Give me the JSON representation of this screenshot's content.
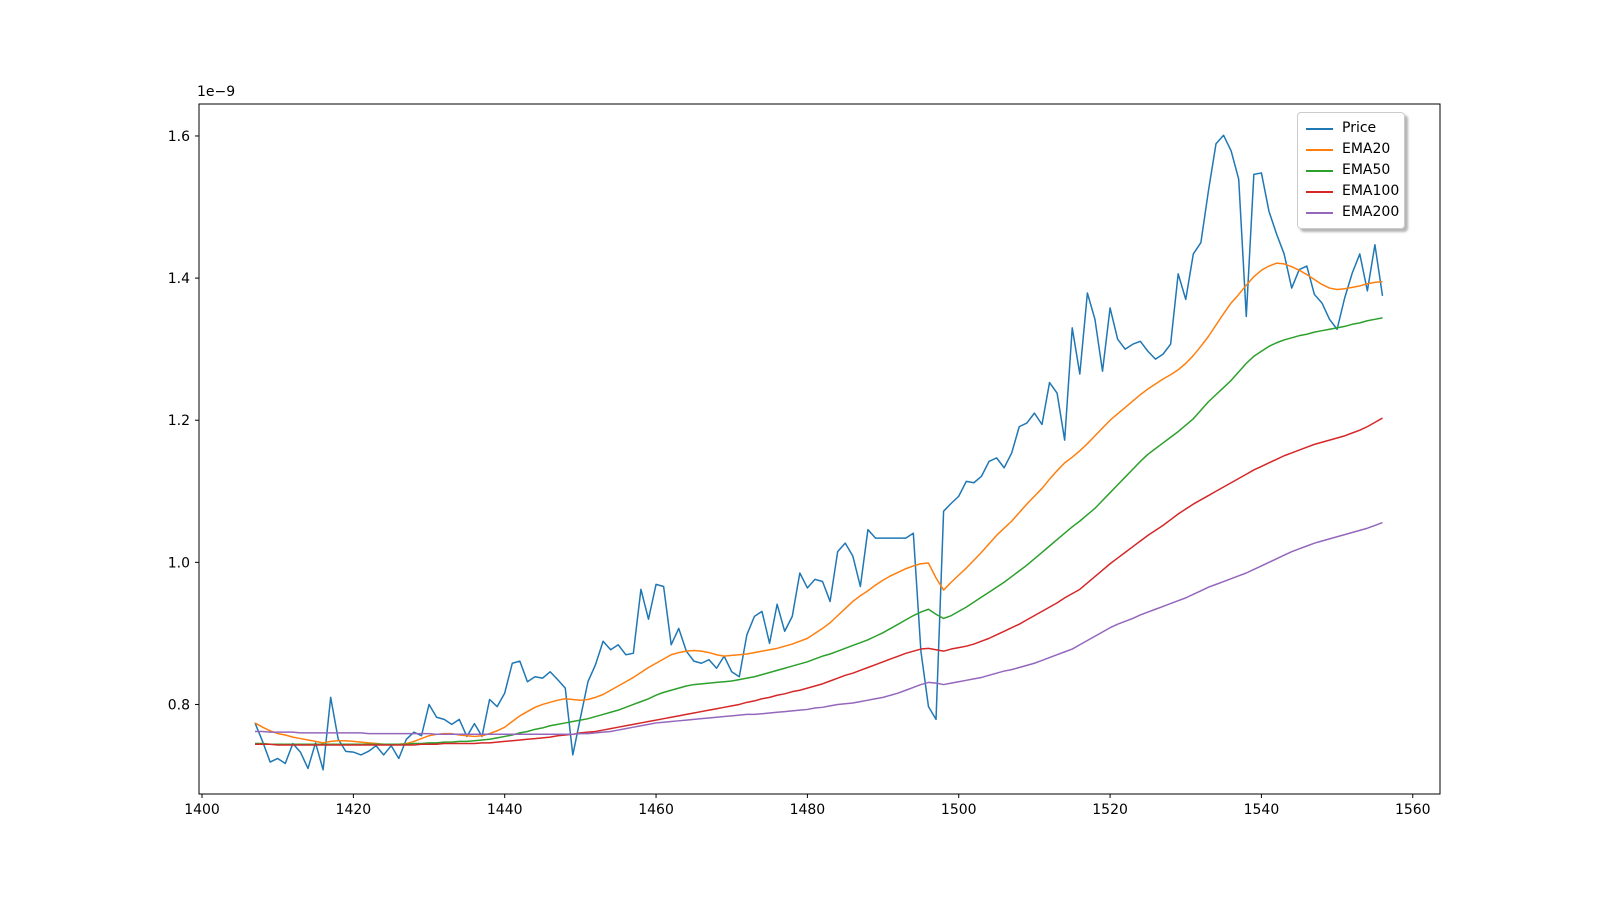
{
  "figure": {
    "background_color": "#ffffff",
    "offset_text": "1e−9"
  },
  "chart_data": {
    "type": "line",
    "title": "",
    "xlabel": "",
    "ylabel": "",
    "y_unit_multiplier": "1e-9",
    "grid": false,
    "legend_position": "upper right",
    "xlim": [
      1399.6,
      1563.6
    ],
    "ylim": [
      0.674,
      1.645
    ],
    "xticks": [
      1400,
      1420,
      1440,
      1460,
      1480,
      1500,
      1520,
      1540,
      1560
    ],
    "yticks": [
      0.8,
      1.0,
      1.2,
      1.4,
      1.6
    ],
    "x": [
      1407,
      1408,
      1409,
      1410,
      1411,
      1412,
      1413,
      1414,
      1415,
      1416,
      1417,
      1418,
      1419,
      1420,
      1421,
      1422,
      1423,
      1424,
      1425,
      1426,
      1427,
      1428,
      1429,
      1430,
      1431,
      1432,
      1433,
      1434,
      1435,
      1436,
      1437,
      1438,
      1439,
      1440,
      1441,
      1442,
      1443,
      1444,
      1445,
      1446,
      1447,
      1448,
      1449,
      1450,
      1451,
      1452,
      1453,
      1454,
      1455,
      1456,
      1457,
      1458,
      1459,
      1460,
      1461,
      1462,
      1463,
      1464,
      1465,
      1466,
      1467,
      1468,
      1469,
      1470,
      1471,
      1472,
      1473,
      1474,
      1475,
      1476,
      1477,
      1478,
      1479,
      1480,
      1481,
      1482,
      1483,
      1484,
      1485,
      1486,
      1487,
      1488,
      1489,
      1490,
      1491,
      1492,
      1493,
      1494,
      1495,
      1496,
      1497,
      1498,
      1499,
      1500,
      1501,
      1502,
      1503,
      1504,
      1505,
      1506,
      1507,
      1508,
      1509,
      1510,
      1511,
      1512,
      1513,
      1514,
      1515,
      1516,
      1517,
      1518,
      1519,
      1520,
      1521,
      1522,
      1523,
      1524,
      1525,
      1526,
      1527,
      1528,
      1529,
      1530,
      1531,
      1532,
      1533,
      1534,
      1535,
      1536,
      1537,
      1538,
      1539,
      1540,
      1541,
      1542,
      1543,
      1544,
      1545,
      1546,
      1547,
      1548,
      1549,
      1550,
      1551,
      1552,
      1553,
      1554,
      1555,
      1556
    ],
    "series": [
      {
        "name": "Price",
        "color": "#1f77b4",
        "values": [
          0.774,
          0.748,
          0.719,
          0.724,
          0.717,
          0.745,
          0.733,
          0.71,
          0.746,
          0.708,
          0.81,
          0.751,
          0.734,
          0.733,
          0.729,
          0.734,
          0.742,
          0.729,
          0.742,
          0.724,
          0.751,
          0.761,
          0.756,
          0.8,
          0.782,
          0.779,
          0.772,
          0.779,
          0.755,
          0.773,
          0.755,
          0.807,
          0.797,
          0.816,
          0.858,
          0.861,
          0.832,
          0.839,
          0.837,
          0.846,
          0.835,
          0.823,
          0.729,
          0.781,
          0.832,
          0.856,
          0.889,
          0.877,
          0.884,
          0.87,
          0.872,
          0.962,
          0.92,
          0.969,
          0.966,
          0.884,
          0.907,
          0.875,
          0.861,
          0.858,
          0.863,
          0.851,
          0.868,
          0.846,
          0.839,
          0.898,
          0.924,
          0.931,
          0.886,
          0.941,
          0.903,
          0.924,
          0.985,
          0.964,
          0.976,
          0.973,
          0.945,
          1.015,
          1.027,
          1.009,
          0.966,
          1.046,
          1.034,
          1.034,
          1.034,
          1.034,
          1.034,
          1.041,
          0.875,
          0.797,
          0.779,
          1.072,
          1.083,
          1.093,
          1.114,
          1.112,
          1.121,
          1.142,
          1.147,
          1.133,
          1.154,
          1.191,
          1.196,
          1.21,
          1.194,
          1.253,
          1.238,
          1.172,
          1.33,
          1.265,
          1.379,
          1.342,
          1.269,
          1.358,
          1.314,
          1.3,
          1.307,
          1.311,
          1.297,
          1.286,
          1.293,
          1.307,
          1.406,
          1.37,
          1.434,
          1.45,
          1.523,
          1.589,
          1.601,
          1.579,
          1.539,
          1.346,
          1.546,
          1.548,
          1.494,
          1.462,
          1.434,
          1.386,
          1.412,
          1.417,
          1.377,
          1.365,
          1.342,
          1.328,
          1.372,
          1.407,
          1.434,
          1.382,
          1.447,
          1.375
        ]
      },
      {
        "name": "EMA20",
        "color": "#ff7f0e",
        "values": [
          0.774,
          0.768,
          0.763,
          0.759,
          0.757,
          0.754,
          0.752,
          0.75,
          0.748,
          0.746,
          0.748,
          0.749,
          0.749,
          0.748,
          0.747,
          0.746,
          0.745,
          0.744,
          0.744,
          0.744,
          0.745,
          0.748,
          0.752,
          0.756,
          0.758,
          0.759,
          0.759,
          0.757,
          0.756,
          0.755,
          0.756,
          0.759,
          0.763,
          0.768,
          0.776,
          0.784,
          0.79,
          0.796,
          0.8,
          0.803,
          0.806,
          0.808,
          0.807,
          0.806,
          0.807,
          0.81,
          0.814,
          0.82,
          0.826,
          0.832,
          0.838,
          0.845,
          0.852,
          0.858,
          0.864,
          0.87,
          0.873,
          0.875,
          0.876,
          0.875,
          0.873,
          0.87,
          0.868,
          0.869,
          0.87,
          0.871,
          0.873,
          0.875,
          0.877,
          0.879,
          0.882,
          0.885,
          0.889,
          0.893,
          0.9,
          0.907,
          0.915,
          0.925,
          0.935,
          0.945,
          0.953,
          0.96,
          0.968,
          0.975,
          0.981,
          0.986,
          0.991,
          0.995,
          0.998,
          0.999,
          0.978,
          0.961,
          0.972,
          0.982,
          0.992,
          1.003,
          1.014,
          1.026,
          1.038,
          1.048,
          1.058,
          1.07,
          1.082,
          1.093,
          1.104,
          1.117,
          1.129,
          1.14,
          1.148,
          1.157,
          1.167,
          1.178,
          1.189,
          1.2,
          1.209,
          1.218,
          1.227,
          1.236,
          1.244,
          1.251,
          1.258,
          1.264,
          1.271,
          1.28,
          1.291,
          1.304,
          1.318,
          1.334,
          1.35,
          1.365,
          1.377,
          1.39,
          1.402,
          1.411,
          1.417,
          1.421,
          1.42,
          1.416,
          1.411,
          1.405,
          1.398,
          1.391,
          1.386,
          1.384,
          1.385,
          1.387,
          1.389,
          1.392,
          1.394,
          1.395
        ]
      },
      {
        "name": "EMA50",
        "color": "#2ca02c",
        "values": [
          0.745,
          0.745,
          0.744,
          0.744,
          0.744,
          0.744,
          0.744,
          0.744,
          0.744,
          0.744,
          0.744,
          0.744,
          0.744,
          0.744,
          0.744,
          0.744,
          0.744,
          0.744,
          0.744,
          0.744,
          0.744,
          0.745,
          0.745,
          0.746,
          0.746,
          0.747,
          0.747,
          0.748,
          0.748,
          0.749,
          0.75,
          0.751,
          0.753,
          0.755,
          0.757,
          0.76,
          0.762,
          0.765,
          0.767,
          0.77,
          0.772,
          0.774,
          0.776,
          0.778,
          0.78,
          0.783,
          0.786,
          0.789,
          0.792,
          0.796,
          0.8,
          0.804,
          0.808,
          0.813,
          0.817,
          0.82,
          0.823,
          0.826,
          0.828,
          0.829,
          0.83,
          0.831,
          0.832,
          0.833,
          0.835,
          0.837,
          0.839,
          0.842,
          0.845,
          0.848,
          0.851,
          0.854,
          0.857,
          0.86,
          0.864,
          0.868,
          0.871,
          0.875,
          0.879,
          0.883,
          0.887,
          0.891,
          0.896,
          0.901,
          0.907,
          0.913,
          0.919,
          0.925,
          0.93,
          0.934,
          0.927,
          0.921,
          0.925,
          0.931,
          0.937,
          0.944,
          0.951,
          0.958,
          0.965,
          0.972,
          0.98,
          0.988,
          0.996,
          1.005,
          1.014,
          1.023,
          1.032,
          1.041,
          1.05,
          1.058,
          1.067,
          1.076,
          1.087,
          1.098,
          1.109,
          1.12,
          1.131,
          1.142,
          1.152,
          1.16,
          1.168,
          1.176,
          1.184,
          1.193,
          1.202,
          1.214,
          1.226,
          1.236,
          1.246,
          1.256,
          1.268,
          1.28,
          1.29,
          1.297,
          1.304,
          1.309,
          1.313,
          1.316,
          1.319,
          1.321,
          1.324,
          1.326,
          1.328,
          1.33,
          1.332,
          1.335,
          1.337,
          1.34,
          1.342,
          1.344
        ]
      },
      {
        "name": "EMA100",
        "color": "#d62728",
        "values": [
          0.744,
          0.744,
          0.744,
          0.743,
          0.743,
          0.743,
          0.743,
          0.743,
          0.743,
          0.743,
          0.743,
          0.743,
          0.743,
          0.743,
          0.743,
          0.743,
          0.743,
          0.743,
          0.743,
          0.743,
          0.743,
          0.743,
          0.744,
          0.744,
          0.744,
          0.745,
          0.745,
          0.745,
          0.745,
          0.745,
          0.746,
          0.746,
          0.747,
          0.748,
          0.749,
          0.75,
          0.751,
          0.752,
          0.753,
          0.754,
          0.756,
          0.757,
          0.758,
          0.76,
          0.761,
          0.762,
          0.764,
          0.766,
          0.768,
          0.77,
          0.772,
          0.774,
          0.776,
          0.778,
          0.78,
          0.782,
          0.784,
          0.786,
          0.788,
          0.79,
          0.792,
          0.794,
          0.796,
          0.798,
          0.8,
          0.803,
          0.805,
          0.808,
          0.81,
          0.813,
          0.815,
          0.818,
          0.82,
          0.823,
          0.826,
          0.829,
          0.833,
          0.837,
          0.841,
          0.844,
          0.848,
          0.852,
          0.856,
          0.86,
          0.864,
          0.868,
          0.872,
          0.875,
          0.878,
          0.879,
          0.877,
          0.875,
          0.878,
          0.88,
          0.882,
          0.885,
          0.889,
          0.893,
          0.898,
          0.903,
          0.908,
          0.913,
          0.919,
          0.925,
          0.931,
          0.937,
          0.943,
          0.95,
          0.956,
          0.962,
          0.971,
          0.98,
          0.989,
          0.998,
          1.006,
          1.014,
          1.022,
          1.03,
          1.038,
          1.045,
          1.052,
          1.06,
          1.068,
          1.075,
          1.082,
          1.088,
          1.094,
          1.1,
          1.106,
          1.112,
          1.118,
          1.124,
          1.13,
          1.135,
          1.14,
          1.145,
          1.15,
          1.154,
          1.158,
          1.162,
          1.166,
          1.169,
          1.172,
          1.175,
          1.178,
          1.182,
          1.186,
          1.191,
          1.197,
          1.203
        ]
      },
      {
        "name": "EMA200",
        "color": "#9467bd",
        "values": [
          0.762,
          0.762,
          0.761,
          0.761,
          0.761,
          0.761,
          0.76,
          0.76,
          0.76,
          0.76,
          0.76,
          0.76,
          0.76,
          0.76,
          0.76,
          0.759,
          0.759,
          0.759,
          0.759,
          0.759,
          0.759,
          0.759,
          0.759,
          0.759,
          0.758,
          0.758,
          0.758,
          0.758,
          0.758,
          0.758,
          0.758,
          0.758,
          0.758,
          0.758,
          0.758,
          0.758,
          0.758,
          0.758,
          0.758,
          0.758,
          0.758,
          0.758,
          0.758,
          0.759,
          0.759,
          0.76,
          0.761,
          0.762,
          0.764,
          0.766,
          0.768,
          0.77,
          0.772,
          0.774,
          0.775,
          0.776,
          0.777,
          0.778,
          0.779,
          0.78,
          0.781,
          0.782,
          0.783,
          0.784,
          0.785,
          0.786,
          0.786,
          0.787,
          0.788,
          0.789,
          0.79,
          0.791,
          0.792,
          0.793,
          0.795,
          0.796,
          0.798,
          0.8,
          0.801,
          0.802,
          0.804,
          0.806,
          0.808,
          0.81,
          0.813,
          0.816,
          0.82,
          0.824,
          0.828,
          0.831,
          0.83,
          0.828,
          0.83,
          0.832,
          0.834,
          0.836,
          0.838,
          0.841,
          0.844,
          0.847,
          0.849,
          0.852,
          0.855,
          0.858,
          0.862,
          0.866,
          0.87,
          0.874,
          0.878,
          0.884,
          0.89,
          0.896,
          0.902,
          0.908,
          0.913,
          0.917,
          0.921,
          0.926,
          0.93,
          0.934,
          0.938,
          0.942,
          0.946,
          0.95,
          0.955,
          0.96,
          0.965,
          0.969,
          0.973,
          0.977,
          0.981,
          0.985,
          0.99,
          0.995,
          1.0,
          1.005,
          1.01,
          1.015,
          1.019,
          1.023,
          1.027,
          1.03,
          1.033,
          1.036,
          1.039,
          1.042,
          1.045,
          1.048,
          1.052,
          1.056
        ]
      }
    ]
  }
}
